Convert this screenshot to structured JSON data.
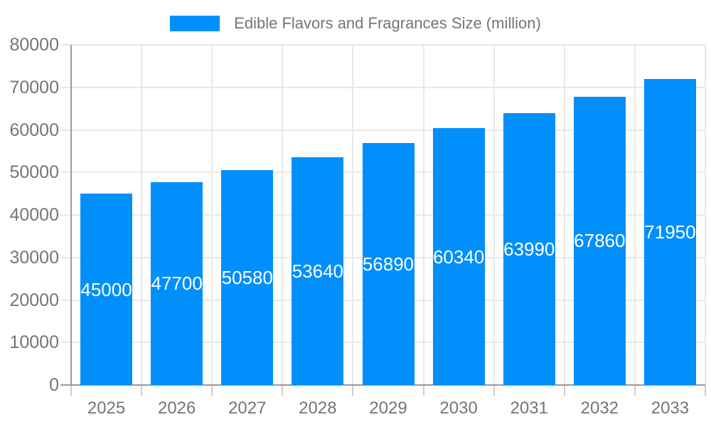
{
  "legend": {
    "label": "Edible Flavors and Fragrances Size (million)"
  },
  "chart_data": {
    "type": "bar",
    "title": "Edible Flavors and Fragrances Size (million)",
    "categories": [
      "2025",
      "2026",
      "2027",
      "2028",
      "2029",
      "2030",
      "2031",
      "2032",
      "2033"
    ],
    "series": [
      {
        "name": "Edible Flavors and Fragrances Size (million)",
        "values": [
          45000,
          47700,
          50580,
          53640,
          56890,
          60340,
          63990,
          67860,
          71950
        ],
        "color": "#008FFB"
      }
    ],
    "data_labels": [
      "45000",
      "47700",
      "50580",
      "53640",
      "56890",
      "60340",
      "63990",
      "67860",
      "71950"
    ],
    "yticks": [
      0,
      10000,
      20000,
      30000,
      40000,
      50000,
      60000,
      70000,
      80000
    ],
    "ylim": [
      0,
      80000
    ],
    "xlabel": "",
    "ylabel": "",
    "grid": true,
    "legend_position": "top",
    "colors": {
      "bar": "#008FFB",
      "grid": "#e8e8e8",
      "axis_line": "#9a9a9a",
      "x_tick": "#cccccc",
      "axis_text": "#757575",
      "data_label_text": "#ffffff",
      "background": "#ffffff"
    }
  }
}
